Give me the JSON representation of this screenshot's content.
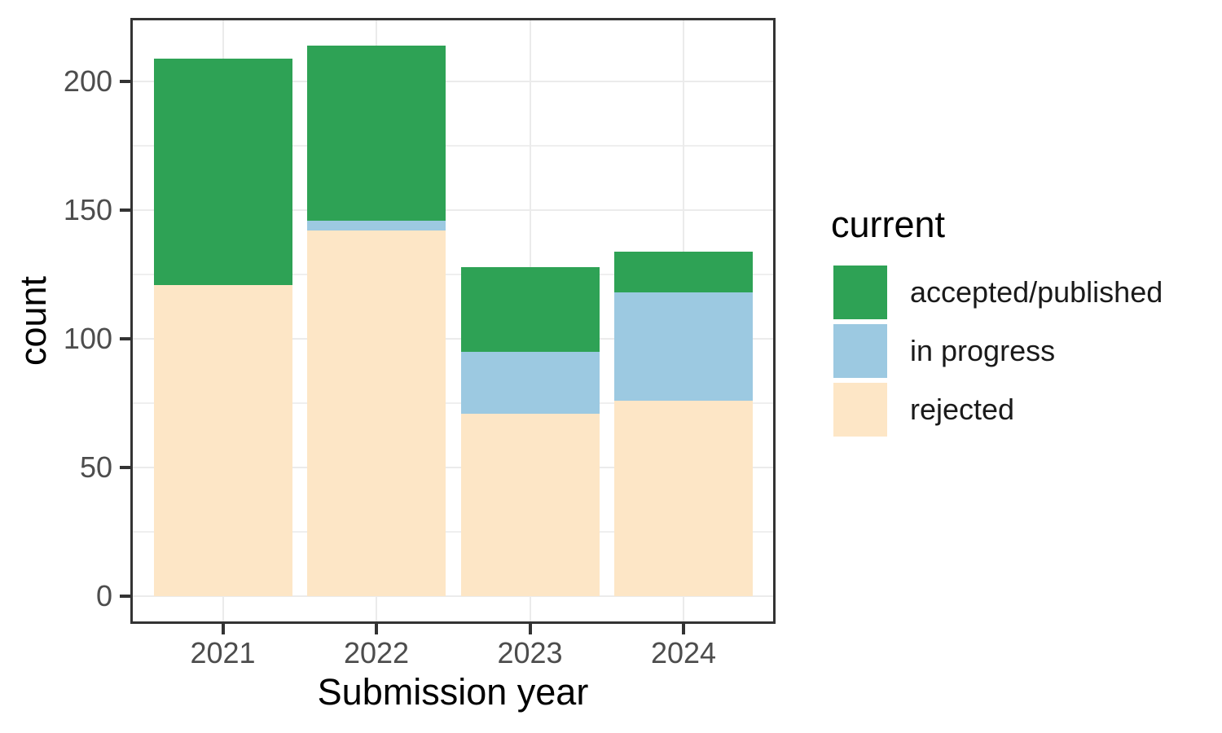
{
  "chart_data": {
    "type": "bar",
    "stacked": true,
    "title": "",
    "xlabel": "Submission year",
    "ylabel": "count",
    "categories": [
      "2021",
      "2022",
      "2023",
      "2024"
    ],
    "series": [
      {
        "name": "rejected",
        "color": "#fde6c6",
        "values": [
          121,
          142,
          71,
          76
        ]
      },
      {
        "name": "in progress",
        "color": "#9cc9e1",
        "values": [
          0,
          4,
          24,
          42
        ]
      },
      {
        "name": "accepted/published",
        "color": "#2ea255",
        "values": [
          88,
          68,
          33,
          16
        ]
      }
    ],
    "stack_totals": [
      209,
      214,
      128,
      134
    ],
    "y_major_ticks": [
      0,
      50,
      100,
      150,
      200
    ],
    "y_minor_ticks": [
      25,
      75,
      125,
      175
    ],
    "ylim": [
      0,
      224
    ],
    "grid": true,
    "legend": {
      "title": "current",
      "position": "right",
      "entries": [
        {
          "label": "accepted/published",
          "color": "#2ea255"
        },
        {
          "label": "in progress",
          "color": "#9cc9e1"
        },
        {
          "label": "rejected",
          "color": "#fde6c6"
        }
      ]
    }
  },
  "colors": {
    "background": "#ffffff",
    "panel_border": "#333333",
    "grid_major": "#ebebeb",
    "grid_minor": "#efefef",
    "tick_mark": "#333333",
    "tick_label": "#4d4d4d",
    "axis_title": "#000000",
    "legend_text": "#1a1a1a",
    "accepted_published": "#2ea255",
    "in_progress": "#9cc9e1",
    "rejected": "#fde6c6"
  }
}
